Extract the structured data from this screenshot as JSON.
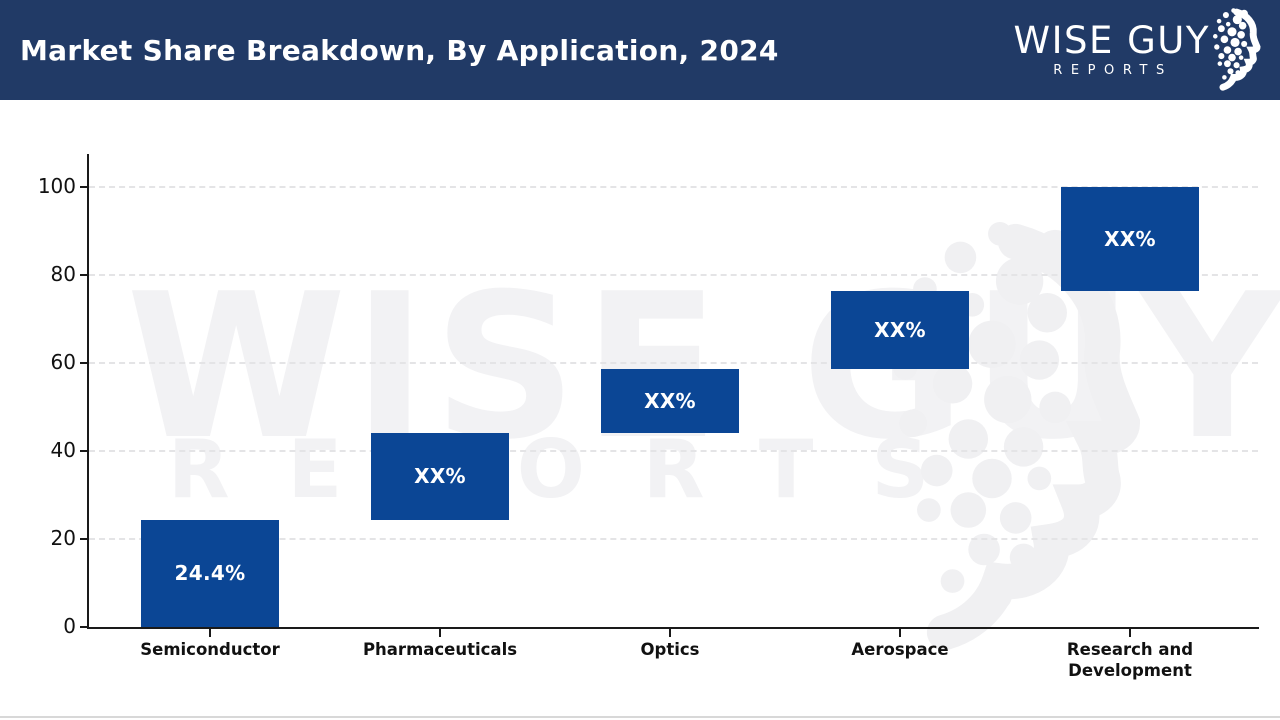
{
  "header": {
    "title": "Market Share Breakdown, By Application, 2024",
    "logo": {
      "line1": "WISE GUY",
      "line2": "REPORTS"
    }
  },
  "watermark": {
    "line1": "WISE GUY",
    "line2": "REPORTS"
  },
  "colors": {
    "header_bg": "#213a66",
    "bar": "#0b4695",
    "bar_label_text": "#ffffff",
    "grid": "#e4e4e6",
    "axis": "#1a1a1a",
    "watermark": "#f2f2f4"
  },
  "chart_data": {
    "type": "bar",
    "subtype": "waterfall",
    "title": "Market Share Breakdown, By Application, 2024",
    "categories": [
      "Semiconductor",
      "Pharmaceuticals",
      "Optics",
      "Aerospace",
      "Research and Development"
    ],
    "segments": [
      {
        "category": "Semiconductor",
        "label": "24.4%",
        "start": 0,
        "end": 24.4,
        "value": 24.4
      },
      {
        "category": "Pharmaceuticals",
        "label": "XX%",
        "start": 24.4,
        "end": 44.1,
        "value": 19.7
      },
      {
        "category": "Optics",
        "label": "XX%",
        "start": 44.1,
        "end": 58.6,
        "value": 14.5
      },
      {
        "category": "Aerospace",
        "label": "XX%",
        "start": 58.6,
        "end": 76.4,
        "value": 17.8
      },
      {
        "category": "Research and Development",
        "label": "XX%",
        "start": 76.4,
        "end": 100,
        "value": 23.6
      }
    ],
    "yticks": [
      0,
      20,
      40,
      60,
      80,
      100
    ],
    "ylim": [
      0,
      107
    ],
    "xlabel": "",
    "ylabel": "",
    "grid": "horizontal-dashed",
    "legend": "none"
  }
}
